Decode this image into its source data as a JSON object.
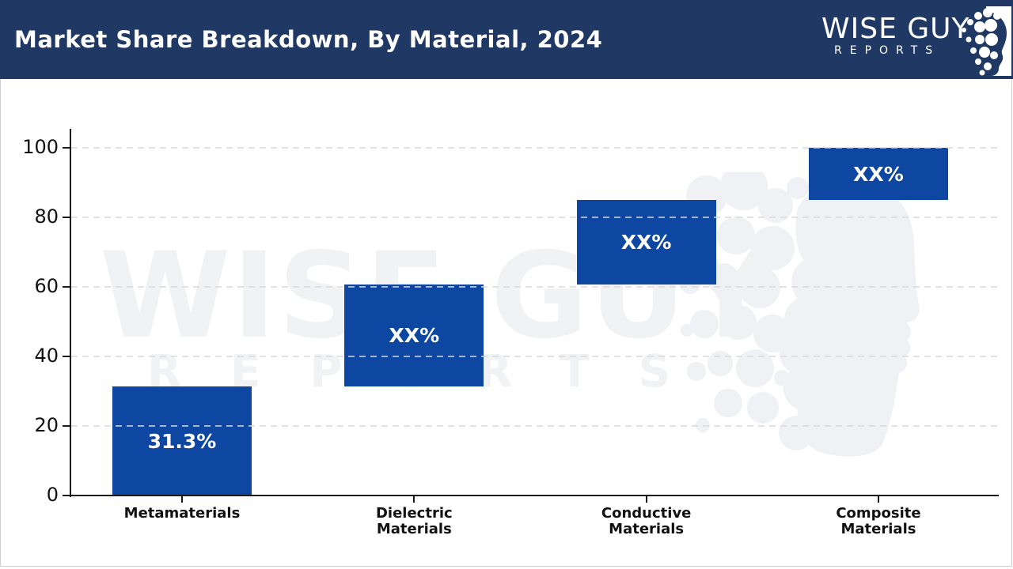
{
  "header": {
    "title": "Market Share Breakdown, By Material, 2024",
    "bg_color": "#203864",
    "logo": {
      "line1": "WISE GUY",
      "line2": "REPORTS"
    }
  },
  "watermark": {
    "line1": "WISE GUY",
    "line2": "REPORTS"
  },
  "chart_data": {
    "type": "bar",
    "subtype": "floating_waterfall",
    "title": "Market Share Breakdown, By Material, 2024",
    "categories": [
      "Metamaterials",
      "Dielectric\nMaterials",
      "Conductive\nMaterials",
      "Composite\nMaterials"
    ],
    "segments": [
      {
        "category": "Metamaterials",
        "start": 0,
        "end": 31.3,
        "label": "31.3%"
      },
      {
        "category": "Dielectric Materials",
        "start": 31.3,
        "end": 60.7,
        "label": "XX%"
      },
      {
        "category": "Conductive Materials",
        "start": 60.7,
        "end": 85.0,
        "label": "XX%"
      },
      {
        "category": "Composite Materials",
        "start": 85.0,
        "end": 100.0,
        "label": "XX%"
      }
    ],
    "values_pct_estimated": [
      31.3,
      29.4,
      24.3,
      15.0
    ],
    "ylabel": "",
    "xlabel": "",
    "yticks": [
      0,
      20,
      40,
      60,
      80,
      100
    ],
    "ylim": [
      0,
      105
    ],
    "grid": {
      "horizontal": true,
      "style": "dashed",
      "color": "#d9d9d9",
      "drawn_over_bars": true
    },
    "legend": null,
    "bar_color": "#0d47a1",
    "bar_label_color": "#ffffff",
    "axis_color": "#1a1a1a"
  }
}
